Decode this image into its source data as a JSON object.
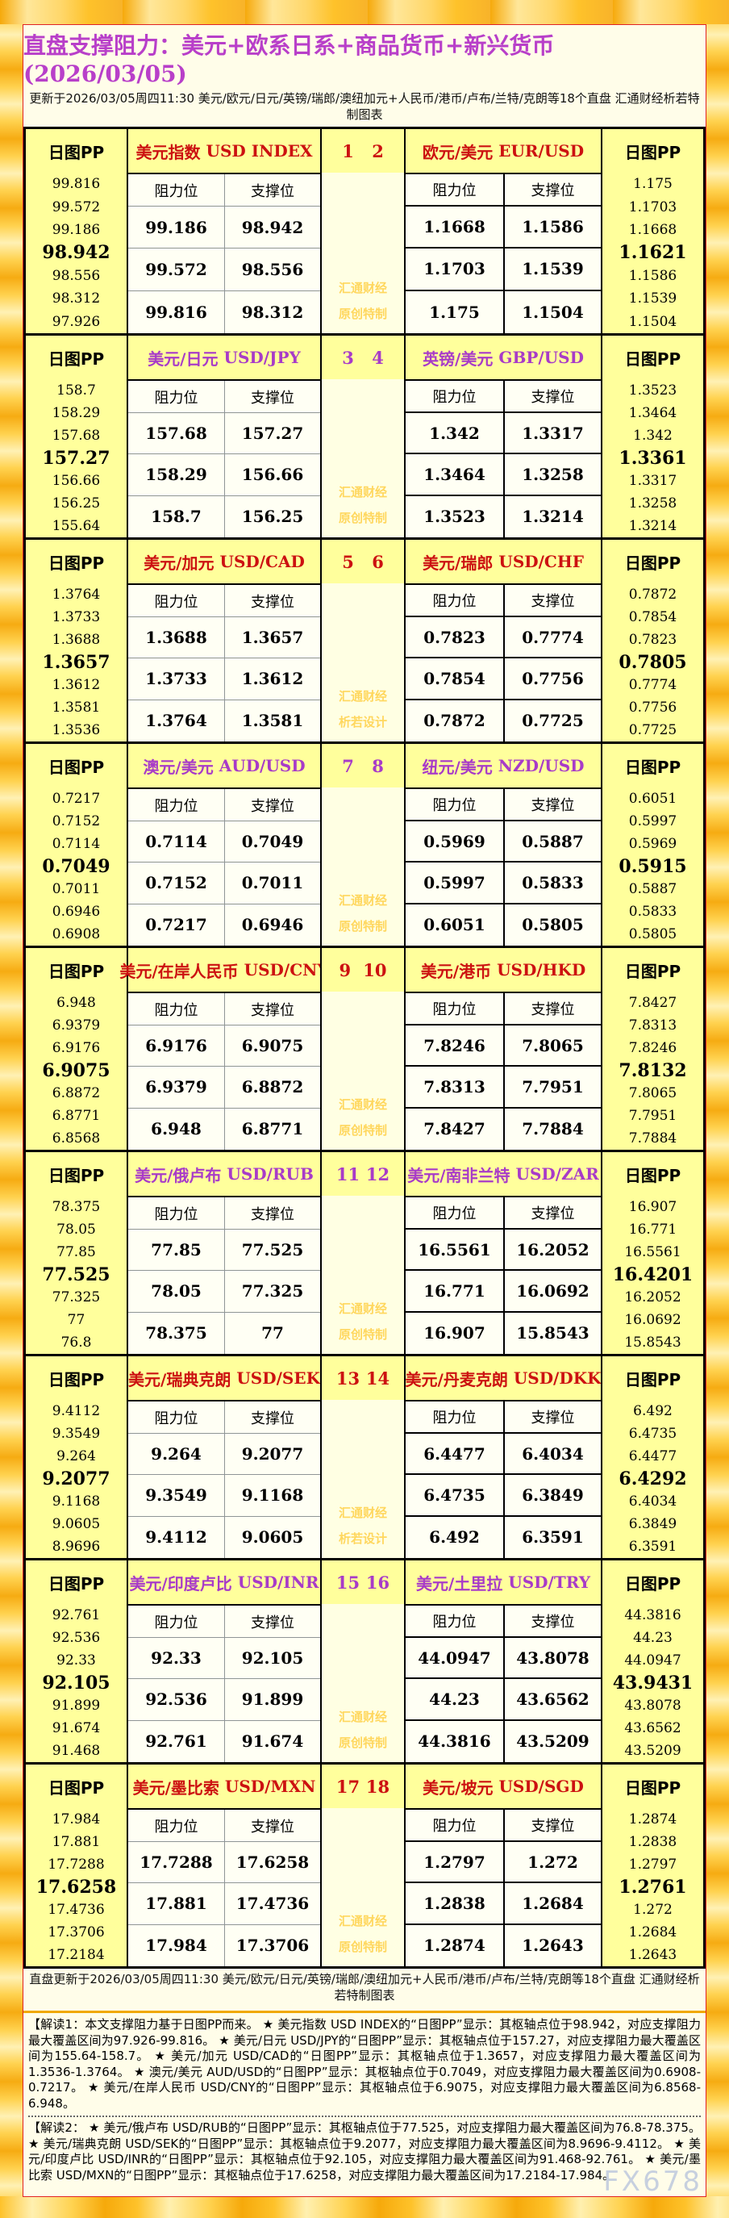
{
  "title": "直盘支撑阻力：美元+欧系日系+商品货币+新兴货币(2026/03/05)",
  "update_line": "更新于2026/03/05周四11:30 美元/欧元/日元/英镑/瑞郎/澳纽加元+人民币/港币/卢布/兰特/克朗等18个直盘 汇通财经析若特制图表",
  "colors": {
    "red": "#cc1111",
    "purple": "#a83bc8",
    "title": "#b83fc9",
    "block_yellow": "#ffff9c",
    "gold_watermark": "#ffd75e"
  },
  "chart_data": {
    "type": "table",
    "title": "直盘支撑阻力：美元+欧系日系+商品货币+新兴货币(2026/03/05)",
    "labels": {
      "pp_header": "日图PP",
      "resistance": "阻力位",
      "support": "支撑位",
      "watermark": "汇通财经"
    },
    "blocks": [
      {
        "num_left": "1",
        "num_right": "2",
        "color": "red",
        "watermark_bottom": "原创特制",
        "left": {
          "name_cn": "美元指数",
          "name_en": "USD INDEX",
          "pp": [
            "99.816",
            "99.572",
            "99.186",
            "98.942",
            "98.556",
            "98.312",
            "97.926"
          ],
          "rows": [
            [
              "99.186",
              "98.942"
            ],
            [
              "99.572",
              "98.556"
            ],
            [
              "99.816",
              "98.312"
            ]
          ]
        },
        "right": {
          "name_cn": "欧元/美元",
          "name_en": "EUR/USD",
          "pp": [
            "1.175",
            "1.1703",
            "1.1668",
            "1.1621",
            "1.1586",
            "1.1539",
            "1.1504"
          ],
          "rows": [
            [
              "1.1668",
              "1.1586"
            ],
            [
              "1.1703",
              "1.1539"
            ],
            [
              "1.175",
              "1.1504"
            ]
          ]
        }
      },
      {
        "num_left": "3",
        "num_right": "4",
        "color": "purple",
        "watermark_bottom": "原创特制",
        "left": {
          "name_cn": "美元/日元",
          "name_en": "USD/JPY",
          "pp": [
            "158.7",
            "158.29",
            "157.68",
            "157.27",
            "156.66",
            "156.25",
            "155.64"
          ],
          "rows": [
            [
              "157.68",
              "157.27"
            ],
            [
              "158.29",
              "156.66"
            ],
            [
              "158.7",
              "156.25"
            ]
          ]
        },
        "right": {
          "name_cn": "英镑/美元",
          "name_en": "GBP/USD",
          "pp": [
            "1.3523",
            "1.3464",
            "1.342",
            "1.3361",
            "1.3317",
            "1.3258",
            "1.3214"
          ],
          "rows": [
            [
              "1.342",
              "1.3317"
            ],
            [
              "1.3464",
              "1.3258"
            ],
            [
              "1.3523",
              "1.3214"
            ]
          ]
        }
      },
      {
        "num_left": "5",
        "num_right": "6",
        "color": "red",
        "watermark_bottom": "析若设计",
        "left": {
          "name_cn": "美元/加元",
          "name_en": "USD/CAD",
          "pp": [
            "1.3764",
            "1.3733",
            "1.3688",
            "1.3657",
            "1.3612",
            "1.3581",
            "1.3536"
          ],
          "rows": [
            [
              "1.3688",
              "1.3657"
            ],
            [
              "1.3733",
              "1.3612"
            ],
            [
              "1.3764",
              "1.3581"
            ]
          ]
        },
        "right": {
          "name_cn": "美元/瑞郎",
          "name_en": "USD/CHF",
          "pp": [
            "0.7872",
            "0.7854",
            "0.7823",
            "0.7805",
            "0.7774",
            "0.7756",
            "0.7725"
          ],
          "rows": [
            [
              "0.7823",
              "0.7774"
            ],
            [
              "0.7854",
              "0.7756"
            ],
            [
              "0.7872",
              "0.7725"
            ]
          ]
        }
      },
      {
        "num_left": "7",
        "num_right": "8",
        "color": "purple",
        "watermark_bottom": "原创特制",
        "left": {
          "name_cn": "澳元/美元",
          "name_en": "AUD/USD",
          "pp": [
            "0.7217",
            "0.7152",
            "0.7114",
            "0.7049",
            "0.7011",
            "0.6946",
            "0.6908"
          ],
          "rows": [
            [
              "0.7114",
              "0.7049"
            ],
            [
              "0.7152",
              "0.7011"
            ],
            [
              "0.7217",
              "0.6946"
            ]
          ]
        },
        "right": {
          "name_cn": "纽元/美元",
          "name_en": "NZD/USD",
          "pp": [
            "0.6051",
            "0.5997",
            "0.5969",
            "0.5915",
            "0.5887",
            "0.5833",
            "0.5805"
          ],
          "rows": [
            [
              "0.5969",
              "0.5887"
            ],
            [
              "0.5997",
              "0.5833"
            ],
            [
              "0.6051",
              "0.5805"
            ]
          ]
        }
      },
      {
        "num_left": "9",
        "num_right": "10",
        "color": "red",
        "watermark_bottom": "原创特制",
        "left": {
          "name_cn": "美元/在岸人民币",
          "name_en": "USD/CNY",
          "pp": [
            "6.948",
            "6.9379",
            "6.9176",
            "6.9075",
            "6.8872",
            "6.8771",
            "6.8568"
          ],
          "rows": [
            [
              "6.9176",
              "6.9075"
            ],
            [
              "6.9379",
              "6.8872"
            ],
            [
              "6.948",
              "6.8771"
            ]
          ]
        },
        "right": {
          "name_cn": "美元/港币",
          "name_en": "USD/HKD",
          "pp": [
            "7.8427",
            "7.8313",
            "7.8246",
            "7.8132",
            "7.8065",
            "7.7951",
            "7.7884"
          ],
          "rows": [
            [
              "7.8246",
              "7.8065"
            ],
            [
              "7.8313",
              "7.7951"
            ],
            [
              "7.8427",
              "7.7884"
            ]
          ]
        }
      },
      {
        "num_left": "11",
        "num_right": "12",
        "color": "purple",
        "watermark_bottom": "原创特制",
        "left": {
          "name_cn": "美元/俄卢布",
          "name_en": "USD/RUB",
          "pp": [
            "78.375",
            "78.05",
            "77.85",
            "77.525",
            "77.325",
            "77",
            "76.8"
          ],
          "rows": [
            [
              "77.85",
              "77.525"
            ],
            [
              "78.05",
              "77.325"
            ],
            [
              "78.375",
              "77"
            ]
          ]
        },
        "right": {
          "name_cn": "美元/南非兰特",
          "name_en": "USD/ZAR",
          "pp": [
            "16.907",
            "16.771",
            "16.5561",
            "16.4201",
            "16.2052",
            "16.0692",
            "15.8543"
          ],
          "rows": [
            [
              "16.5561",
              "16.2052"
            ],
            [
              "16.771",
              "16.0692"
            ],
            [
              "16.907",
              "15.8543"
            ]
          ]
        }
      },
      {
        "num_left": "13",
        "num_right": "14",
        "color": "red",
        "watermark_bottom": "析若设计",
        "left": {
          "name_cn": "美元/瑞典克朗",
          "name_en": "USD/SEK",
          "pp": [
            "9.4112",
            "9.3549",
            "9.264",
            "9.2077",
            "9.1168",
            "9.0605",
            "8.9696"
          ],
          "rows": [
            [
              "9.264",
              "9.2077"
            ],
            [
              "9.3549",
              "9.1168"
            ],
            [
              "9.4112",
              "9.0605"
            ]
          ]
        },
        "right": {
          "name_cn": "美元/丹麦克朗",
          "name_en": "USD/DKK",
          "pp": [
            "6.492",
            "6.4735",
            "6.4477",
            "6.4292",
            "6.4034",
            "6.3849",
            "6.3591"
          ],
          "rows": [
            [
              "6.4477",
              "6.4034"
            ],
            [
              "6.4735",
              "6.3849"
            ],
            [
              "6.492",
              "6.3591"
            ]
          ]
        }
      },
      {
        "num_left": "15",
        "num_right": "16",
        "color": "purple",
        "watermark_bottom": "原创特制",
        "left": {
          "name_cn": "美元/印度卢比",
          "name_en": "USD/INR",
          "pp": [
            "92.761",
            "92.536",
            "92.33",
            "92.105",
            "91.899",
            "91.674",
            "91.468"
          ],
          "rows": [
            [
              "92.33",
              "92.105"
            ],
            [
              "92.536",
              "91.899"
            ],
            [
              "92.761",
              "91.674"
            ]
          ]
        },
        "right": {
          "name_cn": "美元/土里拉",
          "name_en": "USD/TRY",
          "pp": [
            "44.3816",
            "44.23",
            "44.0947",
            "43.9431",
            "43.8078",
            "43.6562",
            "43.5209"
          ],
          "rows": [
            [
              "44.0947",
              "43.8078"
            ],
            [
              "44.23",
              "43.6562"
            ],
            [
              "44.3816",
              "43.5209"
            ]
          ]
        }
      },
      {
        "num_left": "17",
        "num_right": "18",
        "color": "red",
        "watermark_bottom": "原创特制",
        "left": {
          "name_cn": "美元/墨比索",
          "name_en": "USD/MXN",
          "pp": [
            "17.984",
            "17.881",
            "17.7288",
            "17.6258",
            "17.4736",
            "17.3706",
            "17.2184"
          ],
          "rows": [
            [
              "17.7288",
              "17.6258"
            ],
            [
              "17.881",
              "17.4736"
            ],
            [
              "17.984",
              "17.3706"
            ]
          ]
        },
        "right": {
          "name_cn": "美元/坡元",
          "name_en": "USD/SGD",
          "pp": [
            "1.2874",
            "1.2838",
            "1.2797",
            "1.2761",
            "1.272",
            "1.2684",
            "1.2643"
          ],
          "rows": [
            [
              "1.2797",
              "1.272"
            ],
            [
              "1.2838",
              "1.2684"
            ],
            [
              "1.2874",
              "1.2643"
            ]
          ]
        }
      }
    ]
  },
  "footer": {
    "update_line": "直盘更新于2026/03/05周四11:30 美元/欧元/日元/英镑/瑞郎/澳纽加元+人民币/港币/卢布/兰特/克朗等18个直盘 汇通财经析若特制图表",
    "note1": "【解读1：本文支撑阻力基于日图PP而来。 ★ 美元指数 USD INDEX的“日图PP”显示：其枢轴点位于98.942，对应支撑阻力最大覆盖区间为97.926-99.816。 ★ 美元/日元 USD/JPY的“日图PP”显示：其枢轴点位于157.27，对应支撑阻力最大覆盖区间为155.64-158.7。 ★ 美元/加元 USD/CAD的“日图PP”显示：其枢轴点位于1.3657，对应支撑阻力最大覆盖区间为1.3536-1.3764。 ★ 澳元/美元 AUD/USD的“日图PP”显示：其枢轴点位于0.7049，对应支撑阻力最大覆盖区间为0.6908-0.7217。 ★ 美元/在岸人民币 USD/CNY的“日图PP”显示：其枢轴点位于6.9075，对应支撑阻力最大覆盖区间为6.8568-6.948。",
    "note2": "【解读2： ★ 美元/俄卢布 USD/RUB的“日图PP”显示：其枢轴点位于77.525，对应支撑阻力最大覆盖区间为76.8-78.375。 ★ 美元/瑞典克朗 USD/SEK的“日图PP”显示：其枢轴点位于9.2077，对应支撑阻力最大覆盖区间为8.9696-9.4112。 ★ 美元/印度卢比 USD/INR的“日图PP”显示：其枢轴点位于92.105，对应支撑阻力最大覆盖区间为91.468-92.761。 ★ 美元/墨比索 USD/MXN的“日图PP”显示：其枢轴点位于17.6258，对应支撑阻力最大覆盖区间为17.2184-17.984。",
    "brand": "FX678"
  }
}
